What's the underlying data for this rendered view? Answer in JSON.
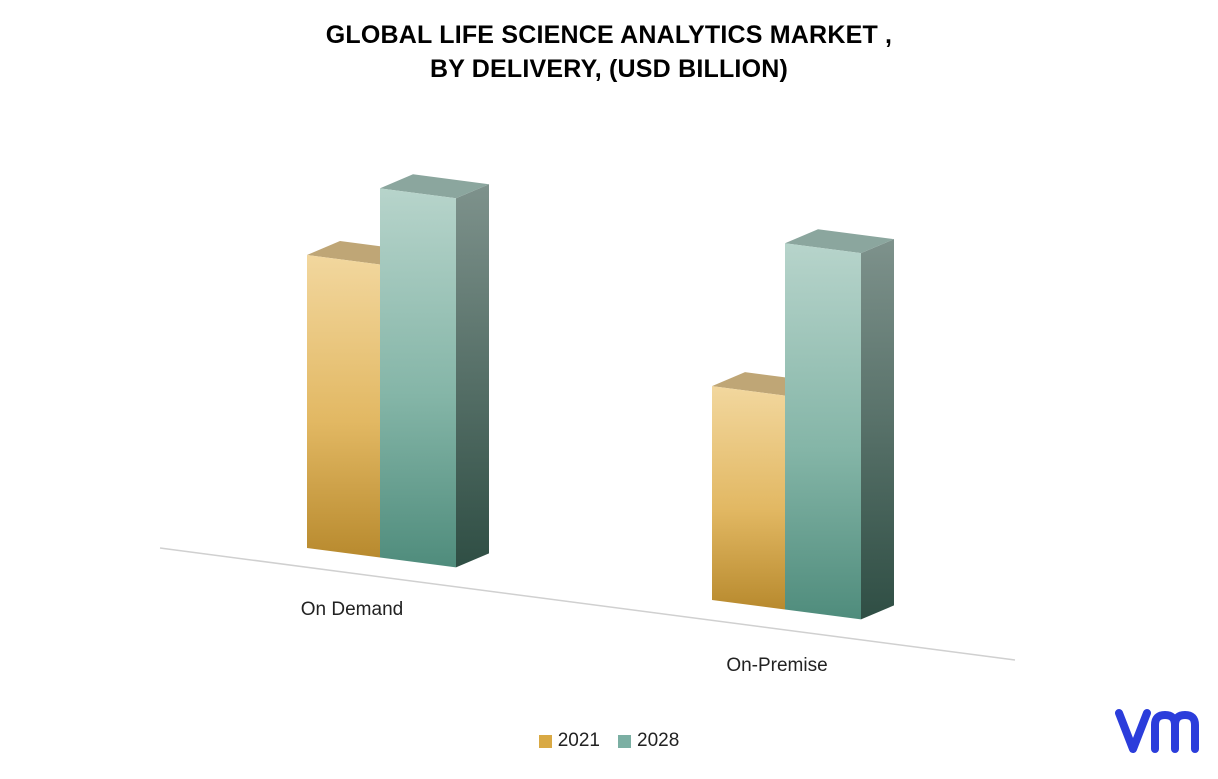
{
  "chart_data": {
    "type": "bar",
    "title_line1": "GLOBAL LIFE SCIENCE ANALYTICS MARKET ,",
    "title_line2": "BY DELIVERY, (USD BILLION)",
    "categories": [
      "On Demand",
      "On-Premise"
    ],
    "series": [
      {
        "name": "2021",
        "values": [
          10.0,
          7.3
        ],
        "color": "#D9A944"
      },
      {
        "name": "2028",
        "values": [
          12.6,
          12.5
        ],
        "color": "#7BAFA3"
      }
    ],
    "ylim": [
      0,
      14
    ],
    "grid": false,
    "legend_position": "bottom",
    "style": "3d-column"
  },
  "logo": {
    "icon": "vm-logo-icon",
    "color": "#2B3DDB"
  }
}
